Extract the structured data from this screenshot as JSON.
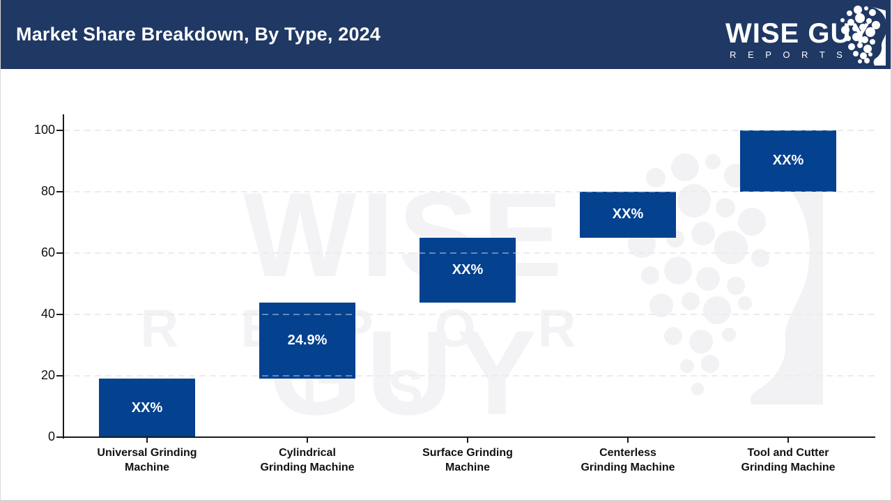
{
  "header": {
    "title": "Market Share Breakdown, By Type, 2024",
    "logo": {
      "line1": "WISE GUY",
      "line2": "R E P O R T S"
    }
  },
  "watermark": {
    "line1": "WISE GUY",
    "line2": "R E P O R T S"
  },
  "colors": {
    "header_navy": "#1F3864",
    "bar_blue": "#04418F",
    "grid_gray": "#e1e1e1",
    "axis_black": "#1a1a1a",
    "watermark_gray": "#f3f3f6",
    "bar_label_white": "#ffffff"
  },
  "chart_data": {
    "type": "bar",
    "subtype": "waterfall",
    "title": "Market Share Breakdown, By Type, 2024",
    "categories": [
      "Universal Grinding\nMachine",
      "Cylindrical\nGrinding Machine",
      "Surface Grinding\nMachine",
      "Centerless\nGrinding Machine",
      "Tool and Cutter\nGrinding Machine"
    ],
    "segments": [
      {
        "category": "Universal Grinding Machine",
        "label": "XX%",
        "start": 0,
        "end": 19
      },
      {
        "category": "Cylindrical Grinding Machine",
        "label": "24.9%",
        "start": 19,
        "end": 43.9
      },
      {
        "category": "Surface Grinding Machine",
        "label": "XX%",
        "start": 43.9,
        "end": 65
      },
      {
        "category": "Centerless Grinding Machine",
        "label": "XX%",
        "start": 65,
        "end": 80
      },
      {
        "category": "Tool and Cutter Grinding Machine",
        "label": "XX%",
        "start": 80,
        "end": 100
      }
    ],
    "xlabel": "",
    "ylabel": "",
    "ylim": [
      0,
      100
    ],
    "yticks": [
      0,
      20,
      40,
      60,
      80,
      100
    ],
    "grid": "horizontal dashed",
    "legend": "none",
    "bar_color": "#04418F"
  }
}
